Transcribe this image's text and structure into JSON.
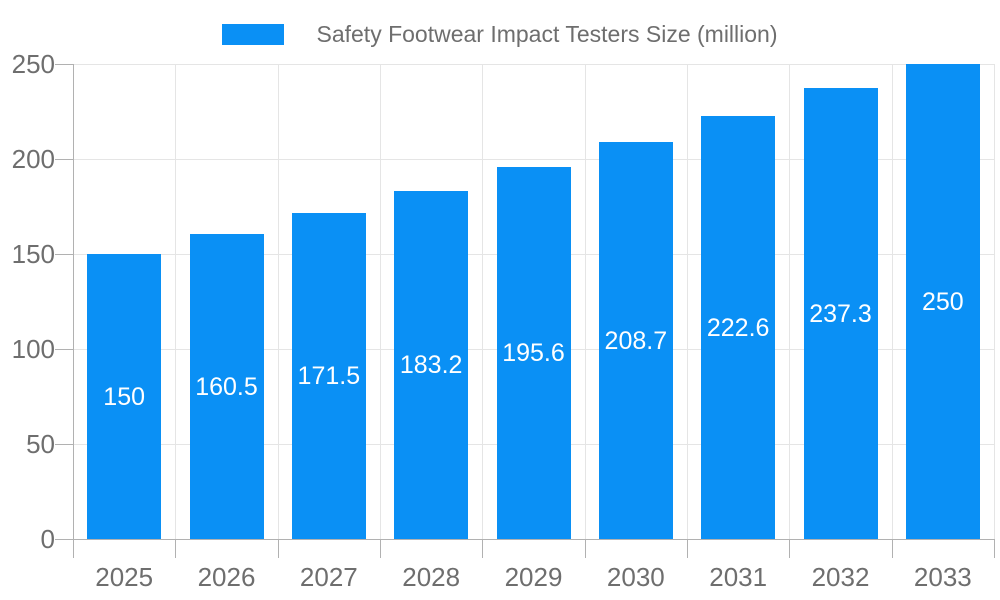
{
  "chart_data": {
    "type": "bar",
    "title": "Safety Footwear Impact Testers Size (million)",
    "legend": {
      "position": "top",
      "entries": [
        "Safety Footwear Impact Testers Size (million)"
      ]
    },
    "categories": [
      "2025",
      "2026",
      "2027",
      "2028",
      "2029",
      "2030",
      "2031",
      "2032",
      "2033"
    ],
    "values": [
      150,
      160.5,
      171.5,
      183.2,
      195.6,
      208.7,
      222.6,
      237.3,
      250
    ],
    "value_labels": [
      "150",
      "160.5",
      "171.5",
      "183.2",
      "195.6",
      "208.7",
      "222.6",
      "237.3",
      "250"
    ],
    "xlabel": "",
    "ylabel": "",
    "ylim": [
      0,
      250
    ],
    "yticks": [
      0,
      50,
      100,
      150,
      200,
      250
    ],
    "grid": true,
    "colors": {
      "bar": "#0a90f5",
      "grid": "#e5e5e5",
      "axis": "#b1b1b1",
      "tick_text": "#6e6e6e",
      "value_text": "#ffffff",
      "background": "#ffffff"
    }
  }
}
